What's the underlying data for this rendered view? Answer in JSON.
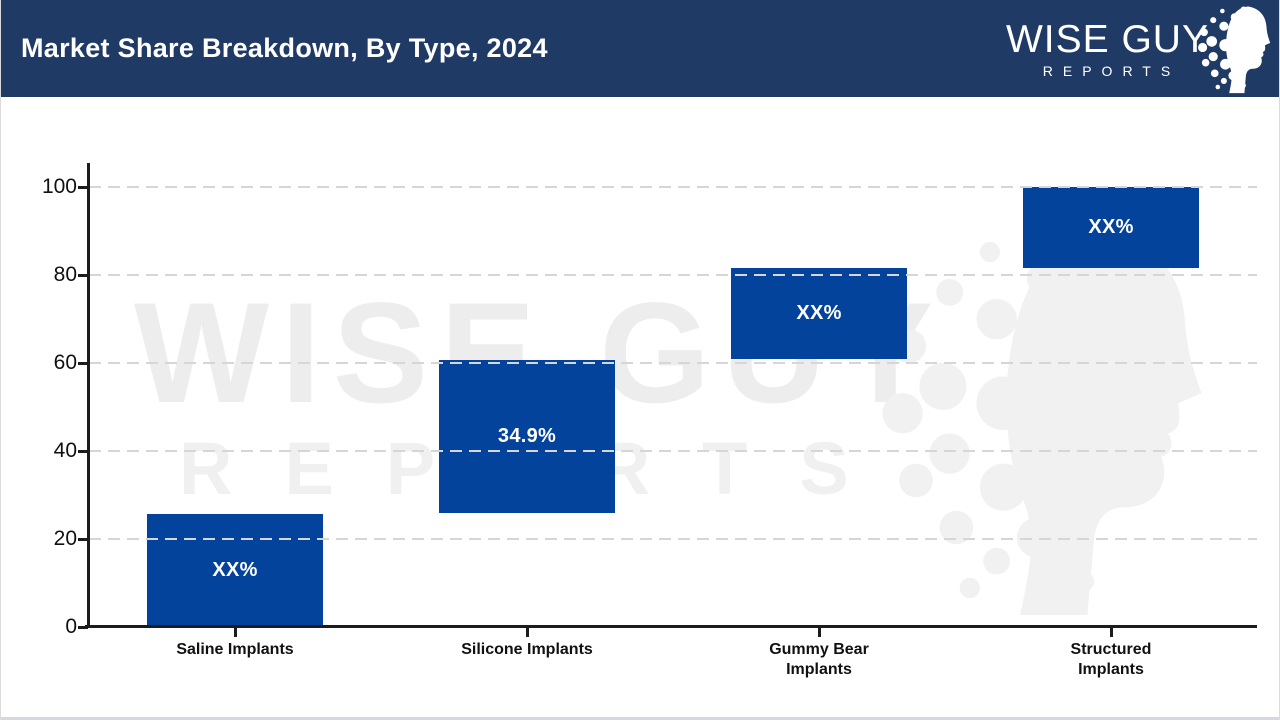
{
  "header": {
    "title": "Market Share Breakdown, By Type, 2024",
    "background_color": "#203A66",
    "logo": {
      "line1": "WISE GUY",
      "line2": "REPORTS"
    }
  },
  "watermark": {
    "line1": "WISE GUY",
    "line2": "REPORTS"
  },
  "chart_data": {
    "type": "bar",
    "subtype": "floating-waterfall",
    "title": "Market Share Breakdown, By Type, 2024",
    "categories": [
      "Saline Implants",
      "Silicone Implants",
      "Gummy Bear Implants",
      "Structured Implants"
    ],
    "segments": [
      {
        "category": "Saline Implants",
        "axis_lines": [
          "Saline Implants"
        ],
        "start": 0,
        "end": 25.7,
        "label": "XX%"
      },
      {
        "category": "Silicone Implants",
        "axis_lines": [
          "Silicone Implants"
        ],
        "start": 25.8,
        "end": 60.7,
        "label": "34.9%"
      },
      {
        "category": "Gummy Bear Implants",
        "axis_lines": [
          "Gummy Bear",
          "Implants"
        ],
        "start": 60.8,
        "end": 81.7,
        "label": "XX%"
      },
      {
        "category": "Structured Implants",
        "axis_lines": [
          "Structured",
          "Implants"
        ],
        "start": 81.7,
        "end": 100,
        "label": "XX%"
      }
    ],
    "ylim": [
      0,
      100
    ],
    "yticks": [
      0,
      20,
      40,
      60,
      80,
      100
    ],
    "grid": "horizontal dashed",
    "legend": "none",
    "bar_color": "#04439B",
    "bar_label_color": "#ffffff",
    "axis_color": "#1c1c1c"
  }
}
